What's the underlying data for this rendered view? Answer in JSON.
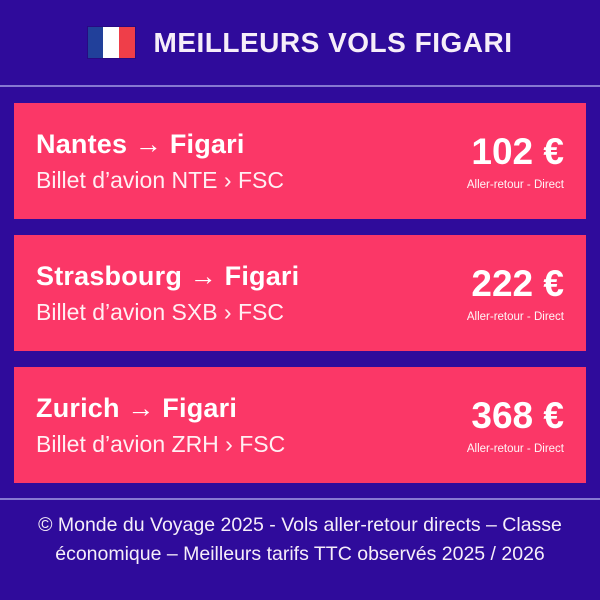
{
  "theme": {
    "background": "#2F0B9B",
    "card": "#FB3767",
    "divider": "#8678D2",
    "text_light": "#F6EEF9",
    "flag_blue": "#21409A",
    "flag_white": "#FFFFFF",
    "flag_red": "#EF3E49"
  },
  "header": {
    "title": "MEILLEURS VOLS FIGARI",
    "flag_icon": "france-flag-icon"
  },
  "cards": [
    {
      "title": "Nantes → Figari",
      "subtitle": "Billet d’avion NTE › FSC",
      "price": "102 €",
      "price_note": "Aller-retour - Direct"
    },
    {
      "title": "Strasbourg → Figari",
      "subtitle": "Billet d’avion SXB › FSC",
      "price": "222 €",
      "price_note": "Aller-retour - Direct"
    },
    {
      "title": "Zurich → Figari",
      "subtitle": "Billet d’avion ZRH › FSC",
      "price": "368 €",
      "price_note": "Aller-retour - Direct"
    }
  ],
  "footer": {
    "line1": "© Monde du Voyage 2025 - Vols aller-retour directs  –  Classe",
    "line2": "économique  –  Meilleurs tarifs TTC observés 2025 / 2026"
  }
}
